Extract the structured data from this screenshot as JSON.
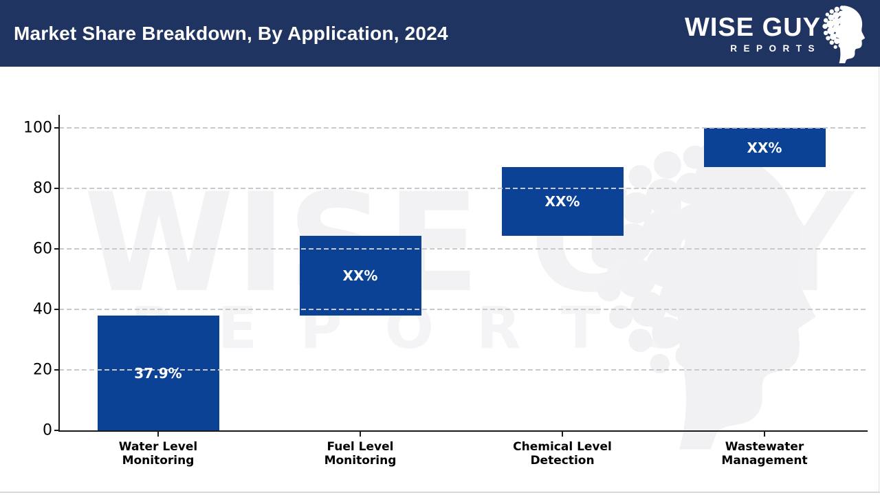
{
  "header": {
    "title": "Market Share Breakdown, By Application, 2024",
    "logo": {
      "brand": "WISE GUY",
      "sub": "REPORTS"
    }
  },
  "watermark": {
    "line1": "WISE GUY",
    "line2": "REPORTS"
  },
  "chart_data": {
    "type": "bar",
    "subtype": "waterfall",
    "title": "Market Share Breakdown, By Application, 2024",
    "categories": [
      "Water Level Monitoring",
      "Fuel Level Monitoring",
      "Chemical Level Detection",
      "Wastewater Management"
    ],
    "category_lines": [
      [
        "Water Level",
        "Monitoring"
      ],
      [
        "Fuel Level",
        "Monitoring"
      ],
      [
        "Chemical Level",
        "Detection"
      ],
      [
        "Wastewater",
        "Management"
      ]
    ],
    "segments": [
      {
        "category": "Water Level Monitoring",
        "start": 0,
        "end": 37.9,
        "label": "37.9%"
      },
      {
        "category": "Fuel Level Monitoring",
        "start": 37.9,
        "end": 64.4,
        "label": "XX%"
      },
      {
        "category": "Chemical Level Detection",
        "start": 64.4,
        "end": 87.0,
        "label": "XX%"
      },
      {
        "category": "Wastewater Management",
        "start": 87.0,
        "end": 100,
        "label": "XX%"
      }
    ],
    "yticks": [
      0,
      20,
      40,
      60,
      80,
      100
    ],
    "ylim": [
      0,
      100
    ],
    "grid": "horizontal-dashed",
    "legend": "none",
    "bar_color": "#0c4296",
    "bar_label_color": "#ffffff"
  },
  "colors": {
    "header_bg": "#203462",
    "bar": "#0c4296",
    "grid": "#c9c9c9",
    "axis": "#1a1a1a",
    "watermark": "#f2f2f4"
  }
}
